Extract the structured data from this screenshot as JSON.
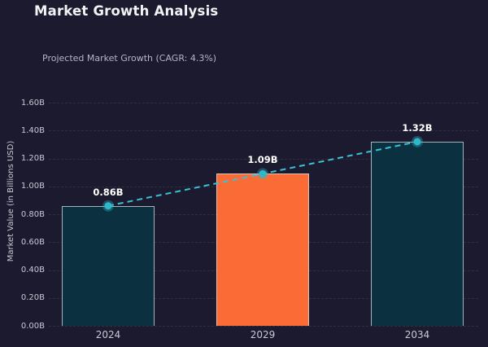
{
  "chart_data": {
    "type": "bar",
    "title": "Market Growth Analysis",
    "subtitle": "Projected Market Growth (CAGR: 4.3%)",
    "categories": [
      "2024",
      "2029",
      "2034"
    ],
    "values": [
      0.86,
      1.09,
      1.32
    ],
    "value_labels": [
      "0.86B",
      "1.09B",
      "1.32B"
    ],
    "xlabel": "",
    "ylabel": "Market Value (in Billions USD)",
    "ylim": [
      0,
      1.6
    ],
    "yticks": [
      "0.00B",
      "0.20B",
      "0.40B",
      "0.60B",
      "0.80B",
      "1.00B",
      "1.20B",
      "1.40B",
      "1.60B"
    ],
    "ytick_values": [
      0,
      0.2,
      0.4,
      0.6,
      0.8,
      1.0,
      1.2,
      1.4,
      1.6
    ],
    "grid": "horizontal-dashed-faint",
    "legend": "none",
    "overlay_line": {
      "type": "line",
      "style": "dashed-with-markers",
      "values": [
        0.86,
        1.09,
        1.32
      ]
    },
    "colors": {
      "background": "#1c1a2e",
      "bar_colors": [
        "#0b3040",
        "#fa6b35",
        "#0b3040"
      ],
      "bar_default": "#0b3040",
      "bar_highlight": "#fa6b35",
      "bar_border": "rgba(214,224,232,0.75)",
      "line": "#3cc0d3",
      "marker": "#2fb8ca",
      "marker_halo": "rgba(47,184,202,0.35)",
      "title_text": "#f2f2f4",
      "subtitle_text": "#b5b5c2",
      "tick_text": "#c9c9d4",
      "value_label_text": "#ffffff"
    }
  }
}
